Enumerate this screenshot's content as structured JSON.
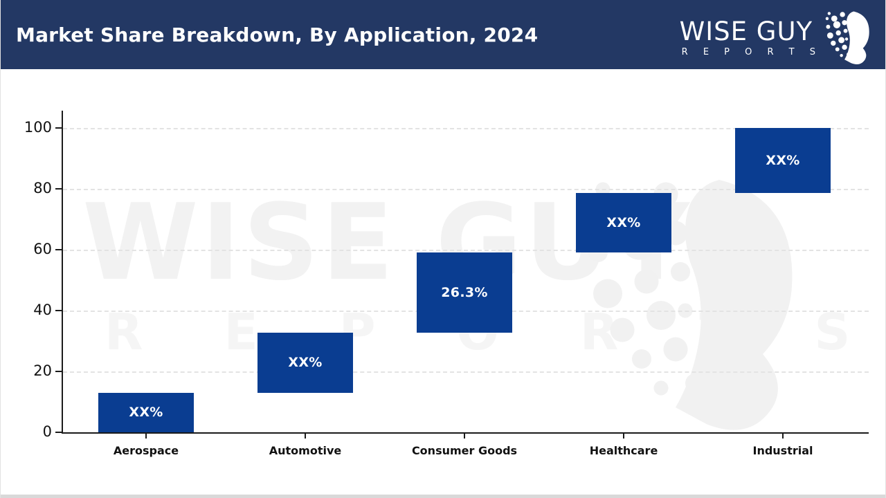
{
  "header": {
    "title": "Market Share Breakdown, By Application, 2024",
    "background_color": "#233864",
    "logo": {
      "name": "WISE GUY",
      "sub": "R E P O R T S",
      "icon": "dotted-head-profile-icon"
    }
  },
  "watermark": {
    "line1": "WISE GUY",
    "line2": "R E P O R T S",
    "icon": "dotted-head-profile-icon"
  },
  "chart_data": {
    "type": "bar",
    "subtype": "floating-waterfall",
    "title": "Market Share Breakdown, By Application, 2024",
    "categories": [
      "Aerospace",
      "Automotive",
      "Consumer Goods",
      "Healthcare",
      "Industrial"
    ],
    "segments": [
      {
        "category": "Aerospace",
        "start": 0,
        "end": 13,
        "label": "XX%"
      },
      {
        "category": "Automotive",
        "start": 13,
        "end": 32.7,
        "label": "XX%"
      },
      {
        "category": "Consumer Goods",
        "start": 32.7,
        "end": 59,
        "label": "26.3%"
      },
      {
        "category": "Healthcare",
        "start": 59,
        "end": 78.6,
        "label": "XX%"
      },
      {
        "category": "Industrial",
        "start": 78.6,
        "end": 100,
        "label": "XX%"
      }
    ],
    "xlabel": "",
    "ylabel": "",
    "ylim": [
      0,
      100
    ],
    "y_ticks": [
      0,
      20,
      40,
      60,
      80,
      100
    ],
    "grid": "horizontal-dashed",
    "legend": "none",
    "bar_color": "#0a3d91",
    "value_label_color": "#ffffff",
    "axis_color": "#1a1a1a"
  }
}
